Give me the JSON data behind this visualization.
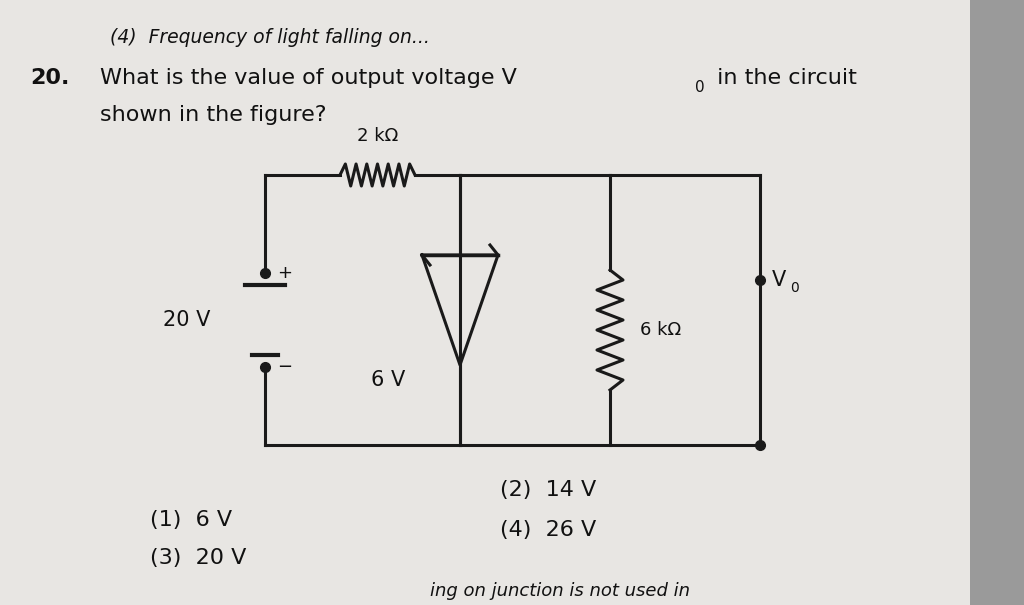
{
  "bg_color": "#c8c8c8",
  "paper_color": "#e8e6e3",
  "text_color": "#111111",
  "question_num": "20.",
  "question_line1a": "What is the value of output voltage V",
  "question_sub": "0",
  "question_line1b": " in the circuit",
  "question_line2": "shown in the figure?",
  "header_text": "(4)  Frequency of light falling on...",
  "resistor1_label": "2 kΩ",
  "resistor2_label": "6 kΩ",
  "battery1_label": "20 V",
  "battery2_label": "6 V",
  "vo_label": "V",
  "vo_sub": "0",
  "options_left": [
    "(1)  6 V",
    "(3)  20 V"
  ],
  "options_right": [
    "(2)  14 V",
    "(4)  26 V"
  ],
  "footer_text": "ing on junction is not used in",
  "line_color": "#1a1a1a",
  "line_width": 2.2,
  "circuit_bg": "#dcdad7"
}
